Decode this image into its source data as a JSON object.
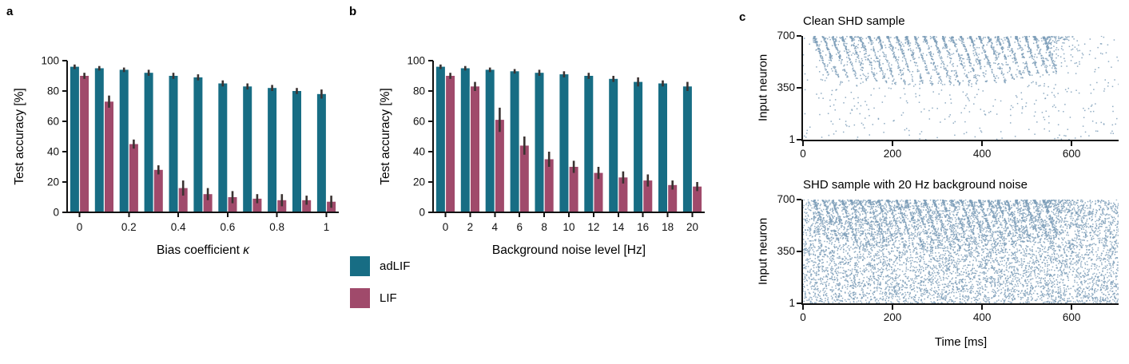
{
  "panels": {
    "a": {
      "label": "a"
    },
    "b": {
      "label": "b"
    },
    "c": {
      "label": "c"
    }
  },
  "legend": {
    "items": [
      {
        "label": "adLIF",
        "color": "#176d84"
      },
      {
        "label": "LIF",
        "color": "#a04a6b"
      }
    ]
  },
  "colors": {
    "adlif": "#176d84",
    "lif": "#a04a6b",
    "error_bar": "#3b3332",
    "axis": "#111111",
    "raster_dot": "#7d9db8"
  },
  "chart_data": [
    {
      "id": "bias-coefficient-accuracy",
      "type": "bar",
      "title": "",
      "xlabel": "Bias coefficient κ",
      "ylabel": "Test accuracy [%]",
      "ylim": [
        0,
        100
      ],
      "yticks": [
        0,
        20,
        40,
        60,
        80,
        100
      ],
      "categories": [
        "0",
        "0.1",
        "0.2",
        "0.3",
        "0.4",
        "0.5",
        "0.6",
        "0.7",
        "0.8",
        "0.9",
        "1"
      ],
      "xtick_labels": [
        "0",
        "",
        "0.2",
        "",
        "0.4",
        "",
        "0.6",
        "",
        "0.8",
        "",
        "1"
      ],
      "grid": false,
      "legend_position": "none",
      "series": [
        {
          "name": "adLIF",
          "color": "#176d84",
          "values": [
            96,
            95,
            94,
            92,
            90,
            89,
            85,
            83,
            82,
            80,
            78
          ],
          "errors": [
            1.5,
            1.5,
            1.5,
            2,
            2,
            2,
            2,
            2,
            2,
            2,
            3
          ]
        },
        {
          "name": "LIF",
          "color": "#a04a6b",
          "values": [
            90,
            73,
            45,
            28,
            16,
            12,
            10,
            9,
            8,
            8,
            7
          ],
          "errors": [
            2,
            4,
            3,
            3,
            5,
            4,
            4,
            3,
            4,
            3,
            4
          ]
        }
      ]
    },
    {
      "id": "background-noise-accuracy",
      "type": "bar",
      "title": "",
      "xlabel": "Background noise level [Hz]",
      "ylabel": "Test accuracy [%]",
      "ylim": [
        0,
        100
      ],
      "yticks": [
        0,
        20,
        40,
        60,
        80,
        100
      ],
      "categories": [
        "0",
        "2",
        "4",
        "6",
        "8",
        "10",
        "12",
        "14",
        "16",
        "18",
        "20"
      ],
      "xtick_labels": [
        "0",
        "2",
        "4",
        "6",
        "8",
        "10",
        "12",
        "14",
        "16",
        "18",
        "20"
      ],
      "grid": false,
      "legend_position": "none",
      "series": [
        {
          "name": "adLIF",
          "color": "#176d84",
          "values": [
            96,
            95,
            94,
            93,
            92,
            91,
            90,
            88,
            86,
            85,
            83
          ],
          "errors": [
            1.5,
            1.5,
            1.5,
            1.5,
            2,
            2,
            2,
            2,
            3,
            2,
            3
          ]
        },
        {
          "name": "LIF",
          "color": "#a04a6b",
          "values": [
            90,
            83,
            61,
            44,
            35,
            30,
            26,
            23,
            21,
            18,
            17
          ],
          "errors": [
            2,
            3,
            8,
            6,
            5,
            4,
            4,
            4,
            4,
            3,
            3
          ]
        }
      ]
    },
    {
      "id": "raster-clean",
      "type": "scatter",
      "title": "Clean SHD sample",
      "xlabel": "",
      "ylabel": "Input neuron",
      "xlim": [
        0,
        705
      ],
      "ylim": [
        1,
        700
      ],
      "xticks": [
        0,
        200,
        400,
        600
      ],
      "yticks": [
        1,
        350,
        700
      ],
      "marker_color": "#7d9db8",
      "pattern": {
        "description": "SHD spoken-digit spike raster: diagonal stripe bursts across input neurons ~370-700 during 20-560 ms, sparse tail to ~650 ms, plus sparse background spikes over all neurons",
        "signal_seed": 42,
        "noise_seed": 7,
        "stripes": 26,
        "stripe_start": 25,
        "stripe_spacing": 20.5,
        "dots_per_stripe": 80,
        "max_depth": 330,
        "slope_ms_per_neuron": 0.12,
        "tail_points": 110,
        "background_points": 550
      }
    },
    {
      "id": "raster-noisy",
      "type": "scatter",
      "title": "SHD sample with 20 Hz background noise",
      "xlabel": "Time [ms]",
      "ylabel": "Input neuron",
      "xlim": [
        0,
        705
      ],
      "ylim": [
        1,
        700
      ],
      "xticks": [
        0,
        200,
        400,
        600
      ],
      "yticks": [
        1,
        350,
        700
      ],
      "marker_color": "#7d9db8",
      "pattern": {
        "description": "Same SHD sample with dense 20 Hz uniform background noise spikes over all neurons and times",
        "signal_seed": 42,
        "noise_seed": 13,
        "stripes": 26,
        "stripe_start": 25,
        "stripe_spacing": 20.5,
        "dots_per_stripe": 80,
        "max_depth": 330,
        "slope_ms_per_neuron": 0.12,
        "tail_points": 110,
        "background_points": 6500
      }
    }
  ]
}
